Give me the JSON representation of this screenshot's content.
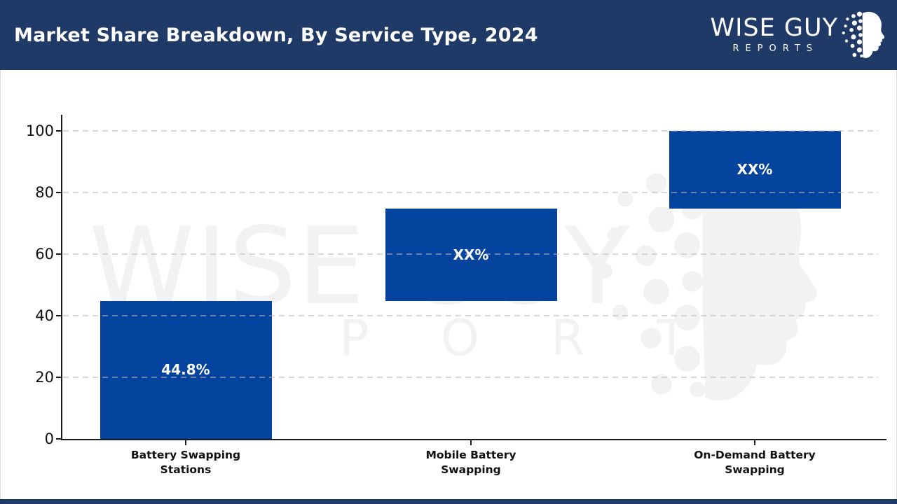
{
  "header": {
    "title": "Market Share Breakdown, By Service Type, 2024",
    "logo": {
      "name": "WISE GUY",
      "sub": "REPORTS"
    }
  },
  "watermark": {
    "line1": "WISE GUY",
    "line2": "R E P O R T S"
  },
  "colors": {
    "header_bg": "#203a68",
    "bar": "#05449e",
    "axis": "#1a1a1a",
    "grid": "#d8d8d8",
    "bar_label_text": "#ffffff",
    "tick_text": "#111111",
    "watermark": "#f2f2f2"
  },
  "chart_data": {
    "type": "bar",
    "subtype": "waterfall",
    "title": "Market Share Breakdown, By Service Type, 2024",
    "categories": [
      "Battery Swapping\nStations",
      "Mobile Battery\nSwapping",
      "On-Demand Battery\nSwapping"
    ],
    "segments": [
      {
        "category": "Battery Swapping Stations",
        "start": 0,
        "end": 44.8,
        "label": "44.8%"
      },
      {
        "category": "Mobile Battery Swapping",
        "start": 44.8,
        "end": 74.8,
        "label": "XX%"
      },
      {
        "category": "On-Demand Battery Swapping",
        "start": 74.8,
        "end": 100,
        "label": "XX%"
      }
    ],
    "yticks": [
      0,
      20,
      40,
      60,
      80,
      100
    ],
    "ylim": [
      0,
      100
    ],
    "xlabel": "",
    "ylabel": "",
    "grid": "dashed-horizontal",
    "legend": "none"
  }
}
